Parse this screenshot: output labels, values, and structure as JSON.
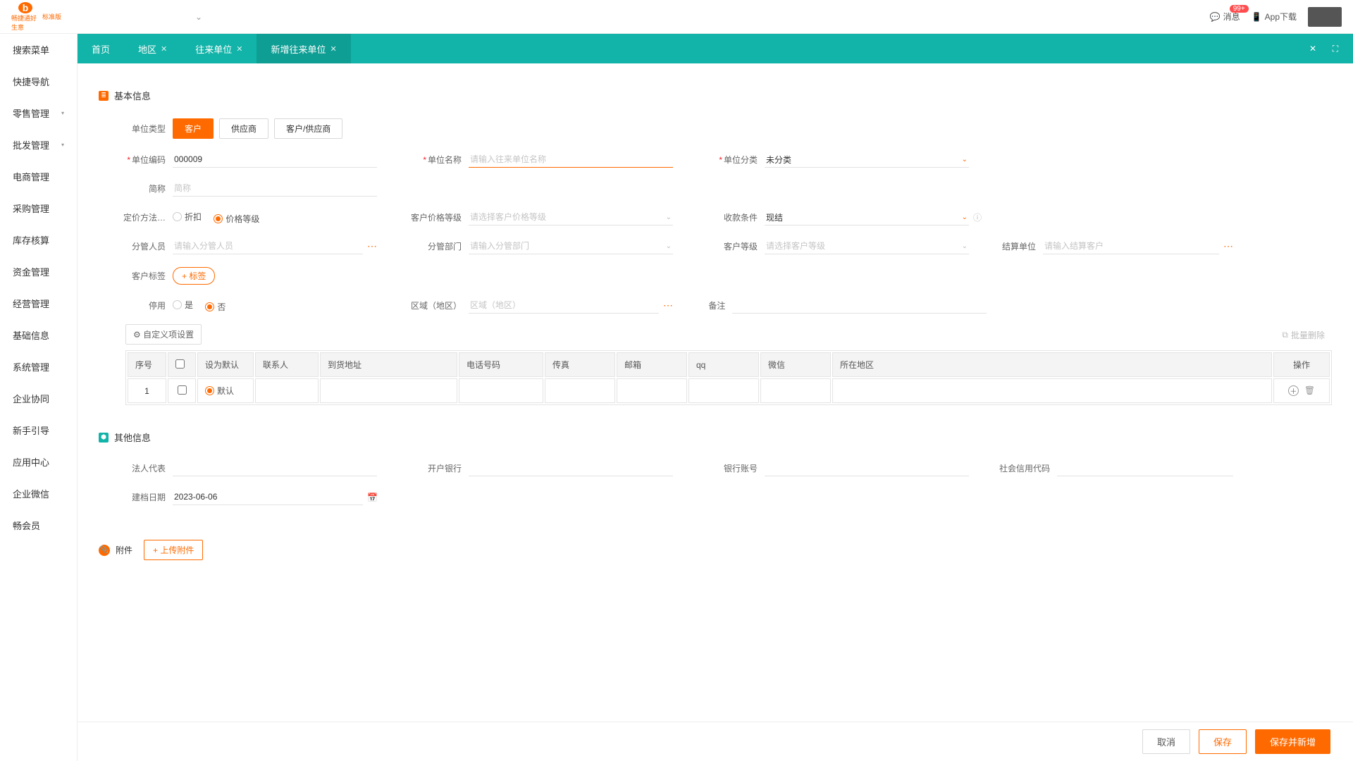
{
  "brand": {
    "logo_letter": "b",
    "name": "畅捷通好生意",
    "edition": "标准版"
  },
  "header": {
    "badge_count": "99+",
    "message_label": "消息",
    "app_download_label": "App下载"
  },
  "sidebar": {
    "items": [
      {
        "label": "搜索菜单",
        "has_sub": false
      },
      {
        "label": "快捷导航",
        "has_sub": false
      },
      {
        "label": "零售管理",
        "has_sub": true
      },
      {
        "label": "批发管理",
        "has_sub": true
      },
      {
        "label": "电商管理",
        "has_sub": false
      },
      {
        "label": "采购管理",
        "has_sub": false
      },
      {
        "label": "库存核算",
        "has_sub": false
      },
      {
        "label": "资金管理",
        "has_sub": false
      },
      {
        "label": "经营管理",
        "has_sub": false
      },
      {
        "label": "基础信息",
        "has_sub": false
      },
      {
        "label": "系统管理",
        "has_sub": false
      },
      {
        "label": "企业协同",
        "has_sub": false
      },
      {
        "label": "新手引导",
        "has_sub": false
      },
      {
        "label": "应用中心",
        "has_sub": false
      },
      {
        "label": "企业微信",
        "has_sub": false
      },
      {
        "label": "畅会员",
        "has_sub": false
      }
    ]
  },
  "tabs": [
    {
      "label": "首页",
      "closable": false,
      "active": false
    },
    {
      "label": "地区",
      "closable": true,
      "active": false
    },
    {
      "label": "往来单位",
      "closable": true,
      "active": false
    },
    {
      "label": "新增往来单位",
      "closable": true,
      "active": true
    }
  ],
  "section1": {
    "title": "基本信息",
    "unit_type_label": "单位类型",
    "unit_type_options": [
      "客户",
      "供应商",
      "客户/供应商"
    ],
    "unit_type_selected": 0,
    "unit_code_label": "单位编码",
    "unit_code_value": "000009",
    "unit_name_label": "单位名称",
    "unit_name_placeholder": "请输入往来单位名称",
    "unit_category_label": "单位分类",
    "unit_category_value": "未分类",
    "short_name_label": "简称",
    "short_name_placeholder": "简称",
    "pricing_label": "定价方法…",
    "pricing_options": [
      "折扣",
      "价格等级"
    ],
    "pricing_selected": 1,
    "cust_price_level_label": "客户价格等级",
    "cust_price_level_placeholder": "请选择客户价格等级",
    "pay_condition_label": "收款条件",
    "pay_condition_value": "现结",
    "manager_label": "分管人员",
    "manager_placeholder": "请输入分管人员",
    "dept_label": "分管部门",
    "dept_placeholder": "请输入分管部门",
    "cust_level_label": "客户等级",
    "cust_level_placeholder": "请选择客户等级",
    "settle_unit_label": "结算单位",
    "settle_unit_placeholder": "请输入结算客户",
    "cust_tag_label": "客户标签",
    "tag_button": "+ 标签",
    "disabled_label": "停用",
    "disabled_options": [
      "是",
      "否"
    ],
    "disabled_selected": 1,
    "region_label": "区域（地区）",
    "region_placeholder": "区域（地区）",
    "remark_label": "备注",
    "custom_settings_button": "⚙ 自定义项设置",
    "batch_delete_label": "批量删除"
  },
  "contact_table": {
    "headers": [
      "序号",
      "",
      "设为默认",
      "联系人",
      "到货地址",
      "电话号码",
      "传真",
      "邮箱",
      "qq",
      "微信",
      "所在地区",
      "操作"
    ],
    "rows": [
      {
        "seq": "1",
        "default_label": "默认",
        "is_default": true
      }
    ]
  },
  "section2": {
    "title": "其他信息",
    "legal_rep_label": "法人代表",
    "bank_label": "开户银行",
    "bank_account_label": "银行账号",
    "social_credit_label": "社会信用代码",
    "archive_date_label": "建档日期",
    "archive_date_value": "2023-06-06"
  },
  "attachments": {
    "title": "附件",
    "upload_button": "+ 上传附件"
  },
  "footer": {
    "cancel": "取消",
    "save": "保存",
    "save_and_new": "保存并新增"
  },
  "colors": {
    "primary": "#ff6a00",
    "teal": "#12b3a8"
  }
}
